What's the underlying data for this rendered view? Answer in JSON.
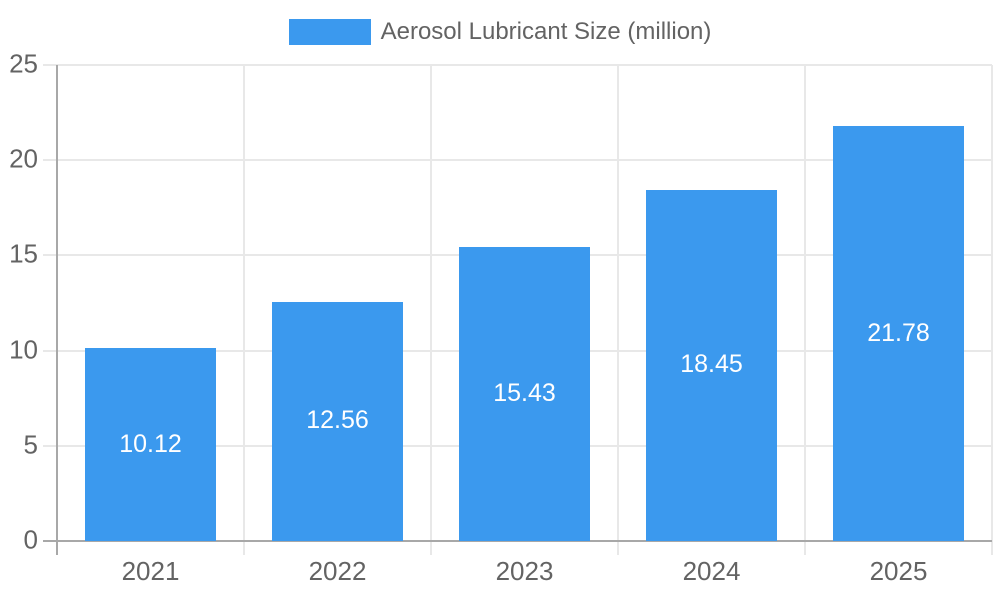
{
  "legend": {
    "label": "Aerosol Lubricant Size (million)"
  },
  "chart_data": {
    "type": "bar",
    "title": "",
    "xlabel": "",
    "ylabel": "",
    "categories": [
      "2021",
      "2022",
      "2023",
      "2024",
      "2025"
    ],
    "series": [
      {
        "name": "Aerosol Lubricant Size (million)",
        "values": [
          10.12,
          12.56,
          15.43,
          18.45,
          21.78
        ]
      }
    ],
    "value_labels": [
      "10.12",
      "12.56",
      "15.43",
      "18.45",
      "21.78"
    ],
    "yticks": [
      "0",
      "5",
      "10",
      "15",
      "20",
      "25"
    ],
    "ylim": [
      0,
      25
    ],
    "grid": "horizontal and vertical gridlines, ticks extend past axes",
    "legend_position": "top-center",
    "colors": {
      "bar": "#3b99ee",
      "gridline": "#e8e8e8",
      "axis": "#a8a8a8",
      "tick_label": "#636363",
      "value_label": "#ffffff",
      "background": "#ffffff"
    }
  }
}
